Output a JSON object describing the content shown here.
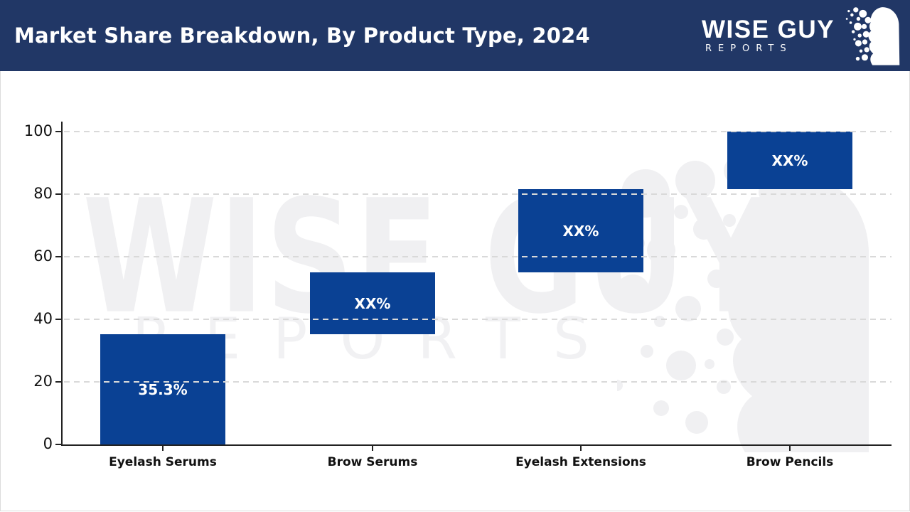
{
  "header": {
    "title": "Market Share Breakdown, By Product Type, 2024",
    "bg_color": "#213766",
    "logo": {
      "line1": "WISE GUY",
      "line2": "REPORTS"
    }
  },
  "watermark": {
    "line1": "WISE GUY",
    "line2": "REPORTS"
  },
  "chart_data": {
    "type": "bar",
    "subtype": "waterfall",
    "title": "Market Share Breakdown, By Product Type, 2024",
    "categories": [
      "Eyelash Serums",
      "Brow Serums",
      "Eyelash Extensions",
      "Brow Pencils"
    ],
    "bars": [
      {
        "category": "Eyelash Serums",
        "start": 0,
        "end": 35.3,
        "label": "35.3%"
      },
      {
        "category": "Brow Serums",
        "start": 35.3,
        "end": 55,
        "label": "XX%"
      },
      {
        "category": "Eyelash Extensions",
        "start": 55,
        "end": 81.5,
        "label": "XX%"
      },
      {
        "category": "Brow Pencils",
        "start": 81.5,
        "end": 100,
        "label": "XX%"
      }
    ],
    "yticks": [
      0,
      20,
      40,
      60,
      80,
      100
    ],
    "ylim": [
      0,
      103
    ],
    "xlabel": "",
    "ylabel": "",
    "bar_color": "#0a4194",
    "grid": "horizontal-dashed-over-bars",
    "grid_color": "#d9d9d9",
    "axis_color": "#222222",
    "legend": "none"
  }
}
